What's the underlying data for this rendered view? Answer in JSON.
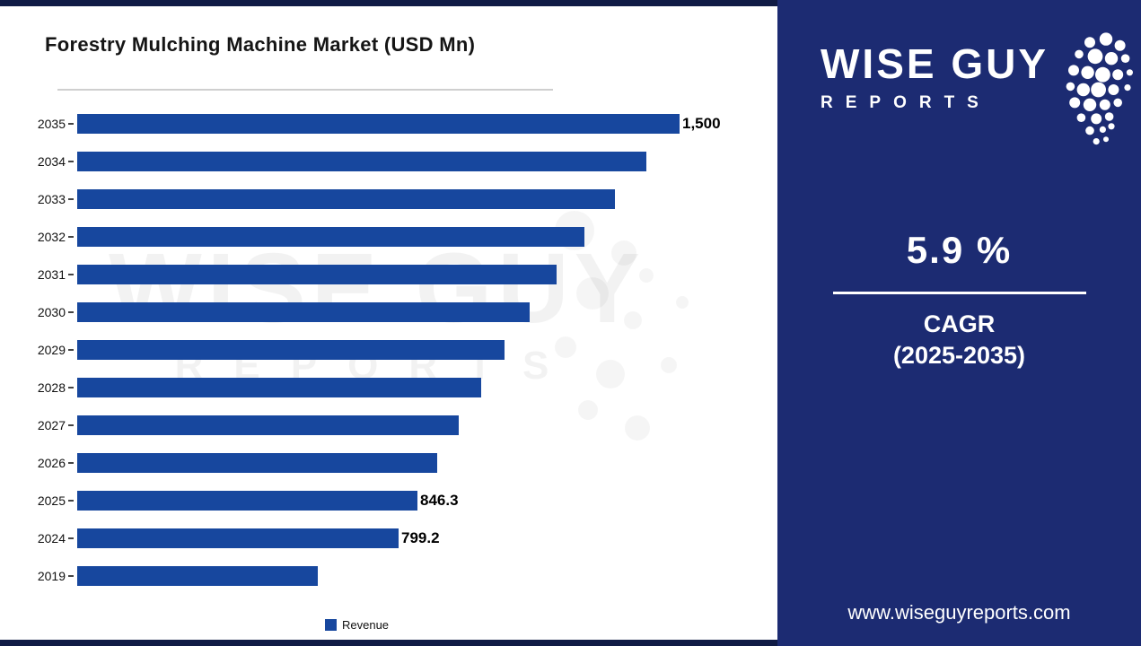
{
  "title": "Forestry Mulching Machine Market (USD Mn)",
  "chart_data": {
    "type": "bar",
    "orientation": "horizontal",
    "title": "Forestry Mulching Machine Market (USD Mn)",
    "xlabel": "",
    "ylabel": "",
    "xlim": [
      0,
      1500
    ],
    "grid": false,
    "legend_position": "bottom",
    "legend": [
      "Revenue"
    ],
    "bar_color": "#17479e",
    "categories": [
      "2035",
      "2034",
      "2033",
      "2032",
      "2031",
      "2030",
      "2029",
      "2028",
      "2027",
      "2026",
      "2025",
      "2024",
      "2019"
    ],
    "values": [
      1500,
      1418,
      1339,
      1264,
      1194,
      1127,
      1064,
      1005,
      949,
      896,
      846.3,
      799.2,
      600
    ],
    "items": [
      {
        "year": "2035",
        "value": 1500,
        "label": "1,500"
      },
      {
        "year": "2034",
        "value": 1418,
        "label": ""
      },
      {
        "year": "2033",
        "value": 1339,
        "label": ""
      },
      {
        "year": "2032",
        "value": 1264,
        "label": ""
      },
      {
        "year": "2031",
        "value": 1194,
        "label": ""
      },
      {
        "year": "2030",
        "value": 1127,
        "label": ""
      },
      {
        "year": "2029",
        "value": 1064,
        "label": ""
      },
      {
        "year": "2028",
        "value": 1005,
        "label": ""
      },
      {
        "year": "2027",
        "value": 949,
        "label": ""
      },
      {
        "year": "2026",
        "value": 896,
        "label": ""
      },
      {
        "year": "2025",
        "value": 846.3,
        "label": "846.3"
      },
      {
        "year": "2024",
        "value": 799.2,
        "label": "799.2"
      },
      {
        "year": "2019",
        "value": 600,
        "label": ""
      }
    ]
  },
  "legend": {
    "revenue_label": "Revenue"
  },
  "watermark": {
    "line1": "WISE GUY",
    "line2": "REPORTS"
  },
  "sidebar": {
    "background_color": "#1c2b72",
    "logo_line1": "WISE GUY",
    "logo_line2": "REPORTS",
    "cagr_value": "5.9 %",
    "cagr_label": "CAGR",
    "cagr_period": "(2025-2035)",
    "website": "www.wiseguyreports.com"
  }
}
